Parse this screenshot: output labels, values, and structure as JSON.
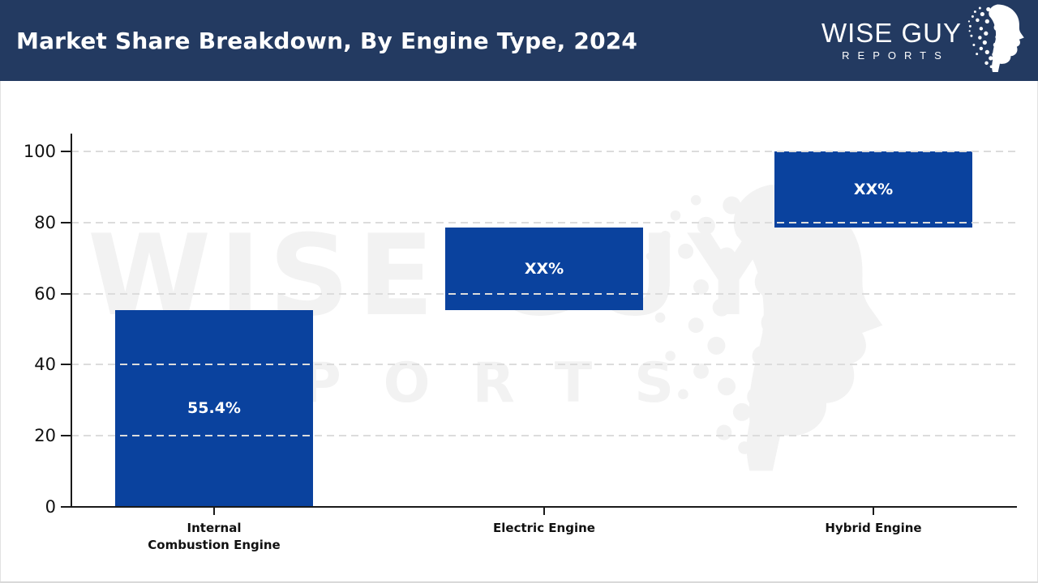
{
  "header": {
    "title": "Market Share Breakdown, By Engine Type, 2024",
    "logo": {
      "name": "WISE GUY",
      "subtitle": "REPORTS"
    }
  },
  "watermark": {
    "name": "WISE GUY",
    "subtitle": "REPORTS"
  },
  "chart_data": {
    "type": "bar",
    "subtype": "floating-segment-steps",
    "title": "Market Share Breakdown, By Engine Type, 2024",
    "xlabel": "",
    "ylabel": "",
    "categories": [
      "Internal Combustion Engine",
      "Electric Engine",
      "Hybrid Engine"
    ],
    "category_label_lines": [
      [
        "Internal",
        "Combustion Engine"
      ],
      [
        "Electric Engine"
      ],
      [
        "Hybrid Engine"
      ]
    ],
    "segments": [
      {
        "category": "Internal Combustion Engine",
        "from": 0,
        "to": 55.4,
        "label": "55.4%"
      },
      {
        "category": "Electric Engine",
        "from": 55.4,
        "to": 78.6,
        "label": "XX%"
      },
      {
        "category": "Hybrid Engine",
        "from": 78.6,
        "to": 100,
        "label": "XX%"
      }
    ],
    "yticks": [
      0,
      20,
      40,
      60,
      80,
      100
    ],
    "ylim": [
      0,
      105
    ],
    "grid": "dashed-horizontal",
    "legend": null,
    "bar_color": "#0a429e",
    "bar_label_color": "#ffffff",
    "axis_color": "#1a1a1a",
    "grid_color": "#dcdcdc"
  },
  "colors": {
    "header_bg": "#233a61",
    "header_text": "#ffffff",
    "watermark": "#f2f2f2",
    "background": "#ffffff"
  }
}
